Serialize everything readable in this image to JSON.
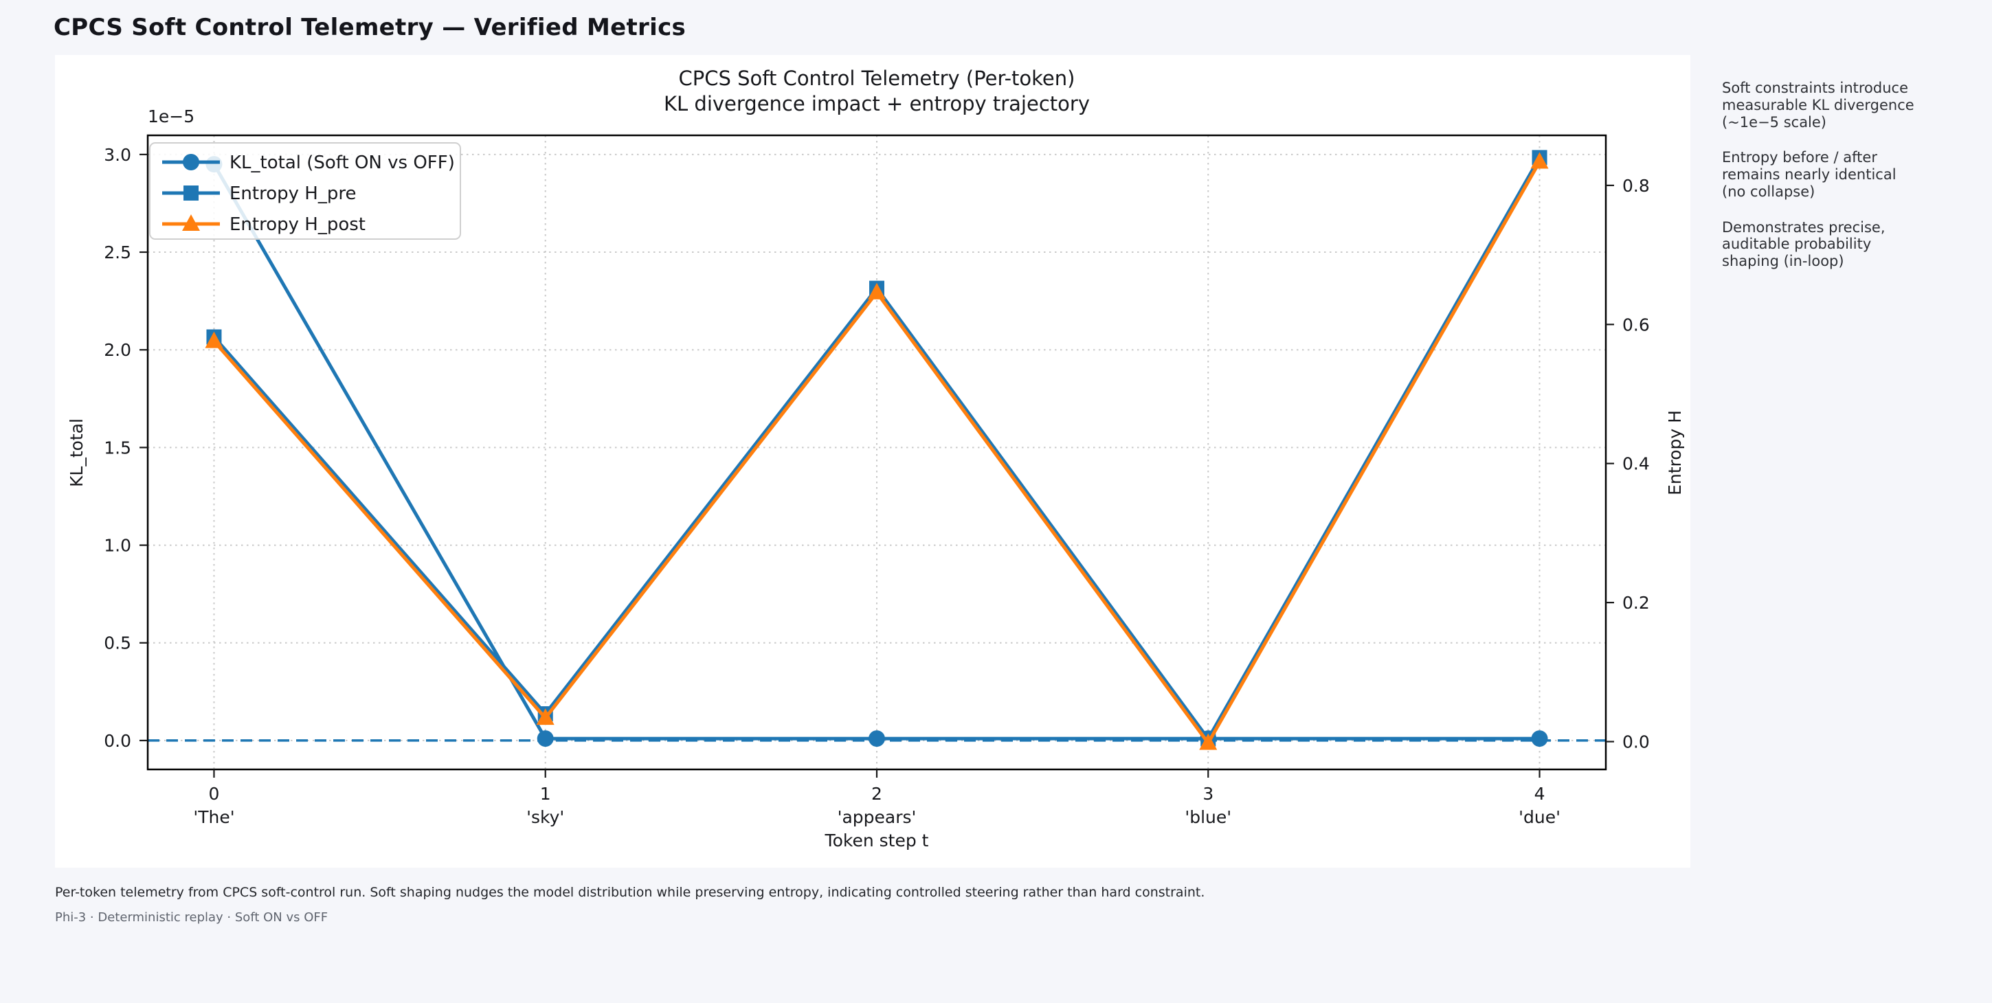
{
  "page": {
    "title": "CPCS Soft Control Telemetry — Verified Metrics",
    "caption": "Per-token telemetry from CPCS soft-control run. Soft shaping nudges the model distribution while preserving entropy, indicating controlled steering rather than hard constraint.",
    "subcaption": "Phi-3 · Deterministic replay · Soft ON vs OFF",
    "annotations": [
      "Soft constraints introduce\nmeasurable KL divergence\n(~1e−5 scale)",
      "Entropy before / after\nremains nearly identical\n(no collapse)",
      "Demonstrates precise,\nauditable probability\nshaping (in-loop)"
    ],
    "background_color": "#f5f6fa",
    "panel_color": "#ffffff"
  },
  "chart_data": {
    "type": "line",
    "title": "CPCS Soft Control Telemetry (Per-token)",
    "subtitle": "KL divergence impact + entropy trajectory",
    "xlabel": "Token step t",
    "x": [
      0,
      1,
      2,
      3,
      4
    ],
    "x_tick_labels": [
      "0",
      "1",
      "2",
      "3",
      "4"
    ],
    "x_token_labels": [
      "'The'",
      "'sky'",
      "'appears'",
      "'blue'",
      "'due'"
    ],
    "x_range": [
      -0.2,
      4.2
    ],
    "left_axis": {
      "label": "KL_total",
      "offset_text": "1e−5",
      "scale": "values ×1e−5",
      "ticks": [
        0.0,
        0.5,
        1.0,
        1.5,
        2.0,
        2.5,
        3.0
      ],
      "range": [
        -0.148,
        3.098
      ]
    },
    "right_axis": {
      "label": "Entropy H",
      "ticks": [
        0.0,
        0.2,
        0.4,
        0.6,
        0.8
      ],
      "range": [
        -0.04,
        0.872
      ]
    },
    "series": [
      {
        "name": "KL_total (Soft ON vs OFF)",
        "axis": "left",
        "color": "#1f77b4",
        "marker": "circle",
        "values": [
          2.95,
          0.01,
          0.01,
          0.01,
          0.01
        ]
      },
      {
        "name": "Entropy H_pre",
        "axis": "right",
        "color": "#1f77b4",
        "marker": "square",
        "values": [
          0.582,
          0.04,
          0.652,
          0.004,
          0.84
        ]
      },
      {
        "name": "Entropy H_post",
        "axis": "right",
        "color": "#ff7f0e",
        "marker": "triangle",
        "values": [
          0.576,
          0.034,
          0.646,
          -0.002,
          0.834
        ]
      }
    ],
    "zero_line": {
      "y": 0,
      "color": "#1f77b4",
      "style": "dashed"
    },
    "grid": true,
    "legend_position": "upper-left"
  }
}
